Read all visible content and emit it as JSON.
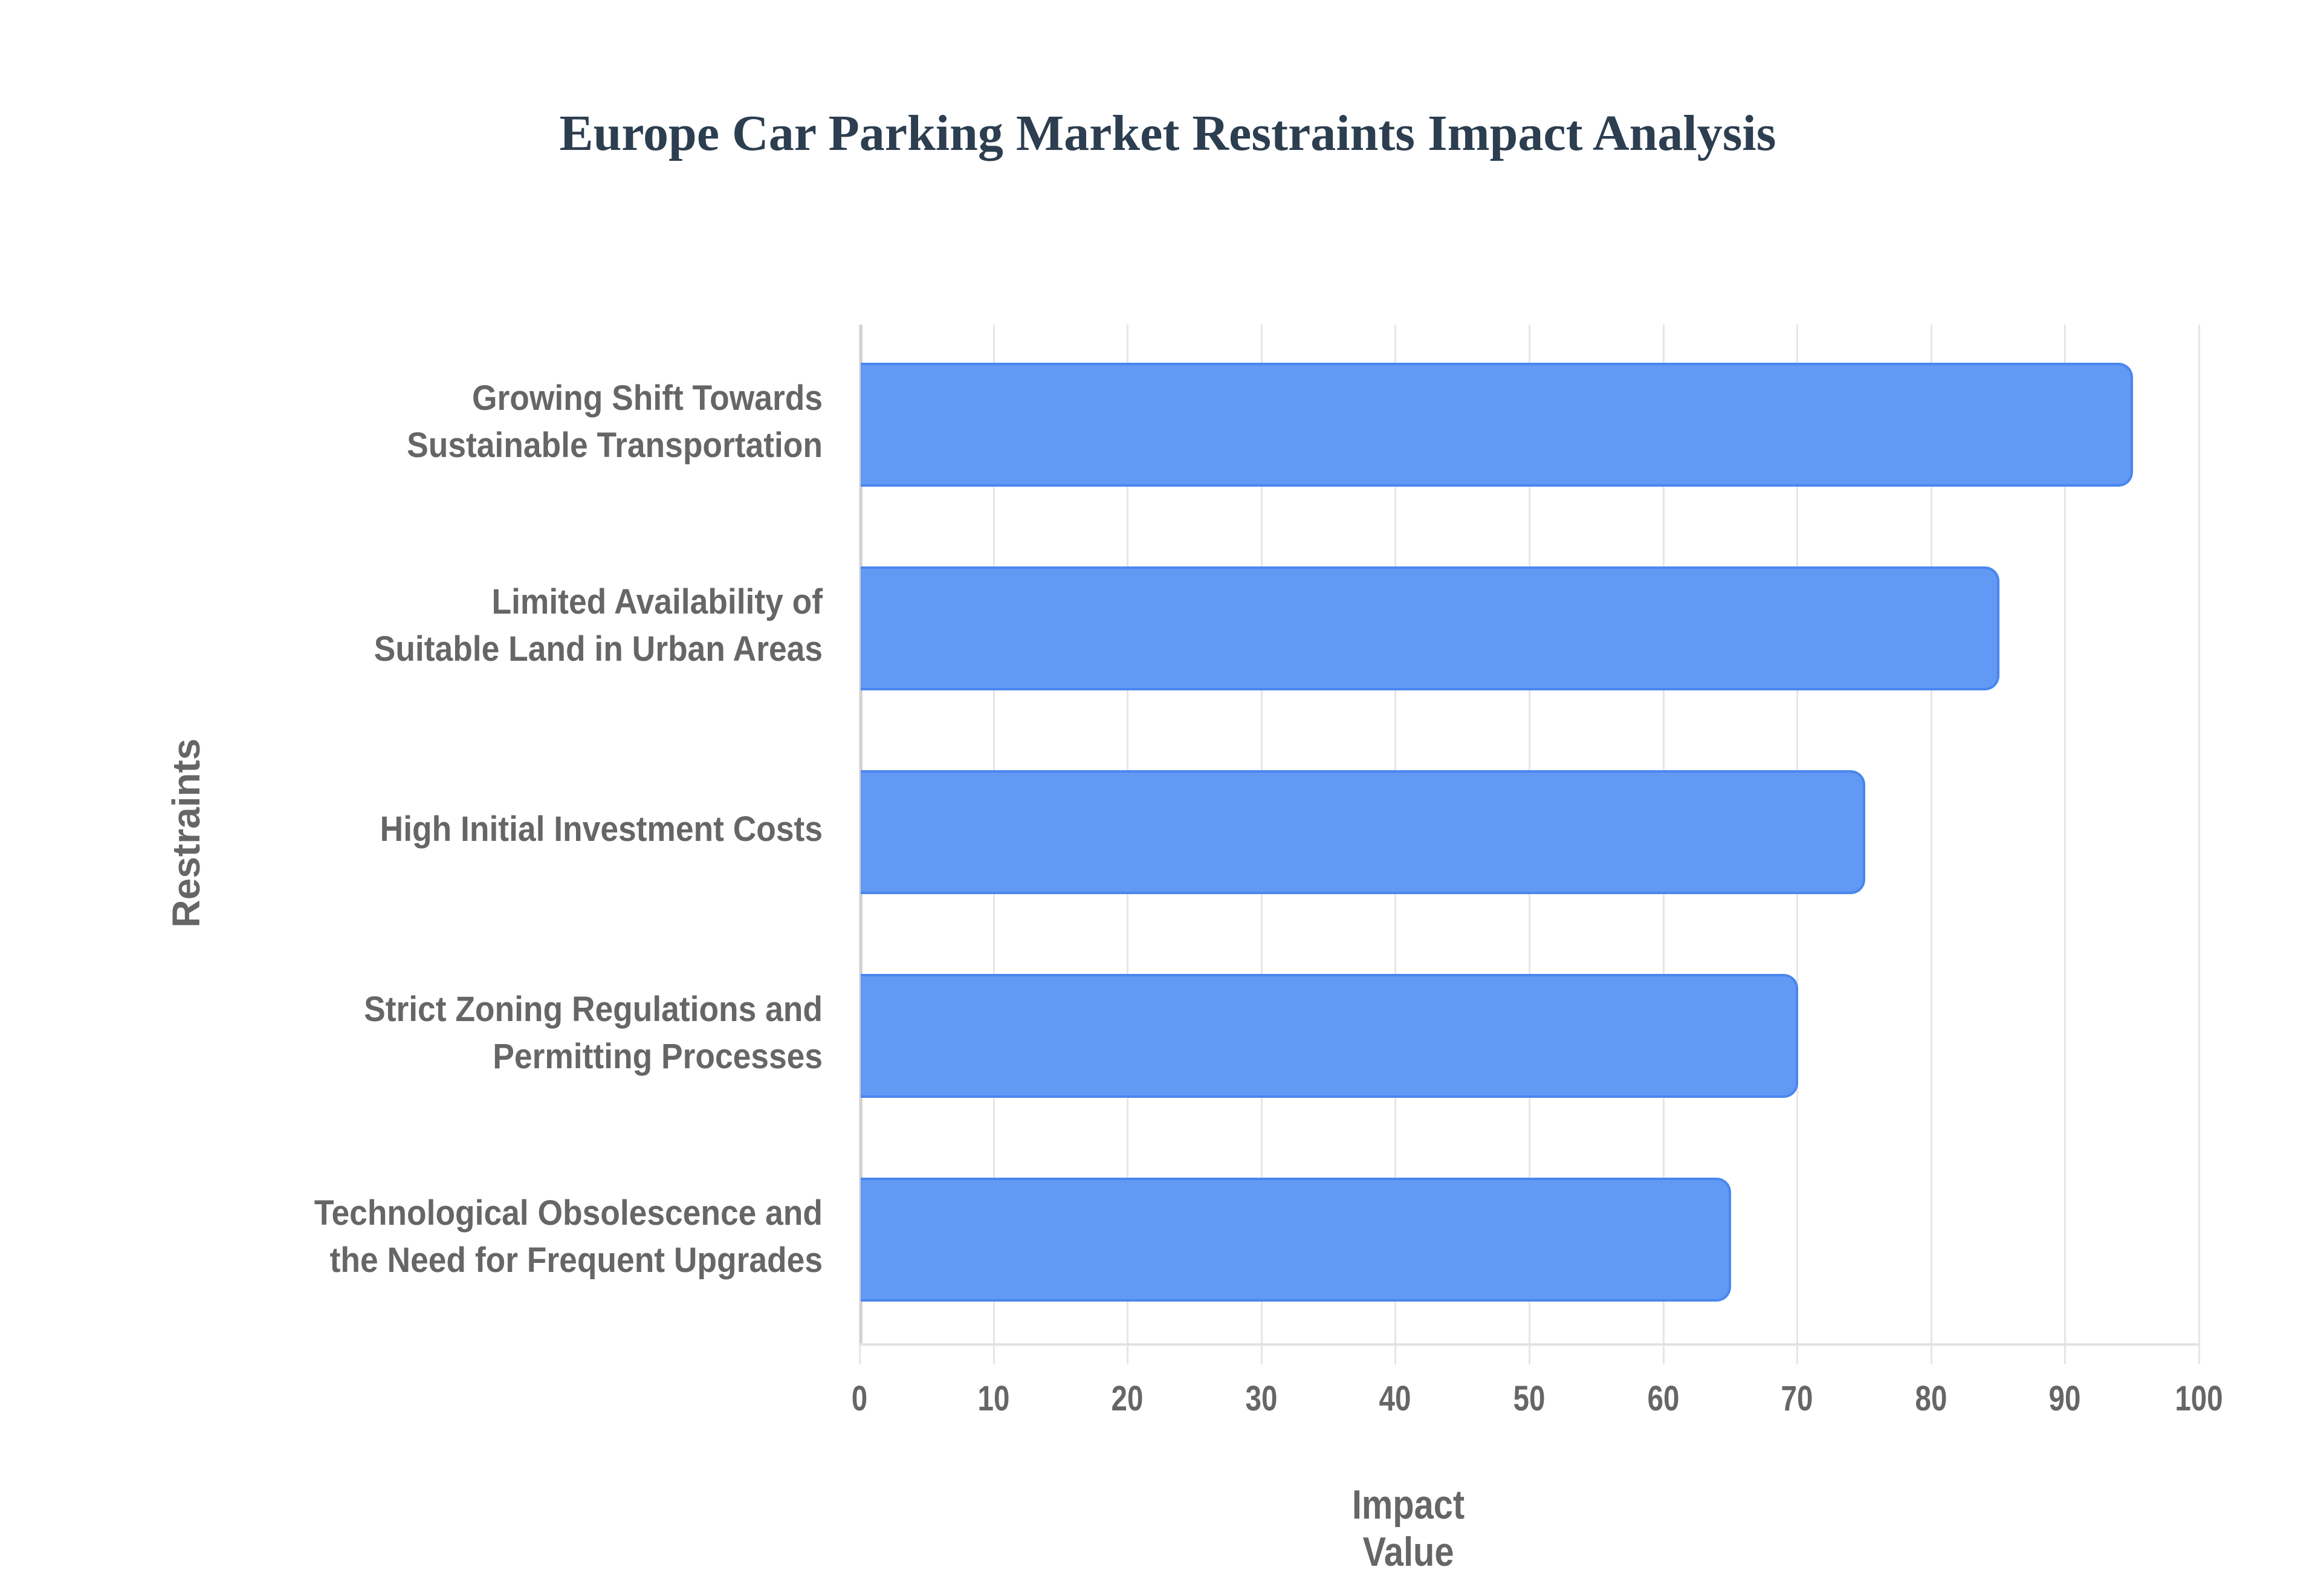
{
  "title": "Europe Car Parking Market Restraints Impact Analysis",
  "chart_data": {
    "type": "bar",
    "orientation": "horizontal",
    "title": "Europe Car Parking Market Restraints Impact Analysis",
    "xlabel": "Impact Value",
    "ylabel": "Restraints",
    "categories": [
      "Growing Shift Towards Sustainable Transportation",
      "Limited Availability of Suitable Land in Urban Areas",
      "High Initial Investment Costs",
      "Strict Zoning Regulations and Permitting Processes",
      "Technological Obsolescence and the Need for Frequent Upgrades"
    ],
    "values": [
      95,
      85,
      75,
      70,
      65
    ],
    "xlim": [
      0,
      100
    ],
    "xticks": [
      "0",
      "10",
      "20",
      "30",
      "40",
      "50",
      "60",
      "70",
      "80",
      "90",
      "100"
    ],
    "grid": true,
    "legend": "none",
    "bar_color": "#6199f5",
    "bar_border_color": "#4a86ef"
  },
  "labels": {
    "cat0_line1": "Growing Shift Towards",
    "cat0_line2": "Sustainable Transportation",
    "cat1_line1": "Limited Availability of",
    "cat1_line2": "Suitable Land in Urban Areas",
    "cat2_line1": "High Initial Investment Costs",
    "cat3_line1": "Strict Zoning Regulations and",
    "cat3_line2": "Permitting Processes",
    "cat4_line1": "Technological Obsolescence and",
    "cat4_line2": "the Need for Frequent Upgrades"
  }
}
